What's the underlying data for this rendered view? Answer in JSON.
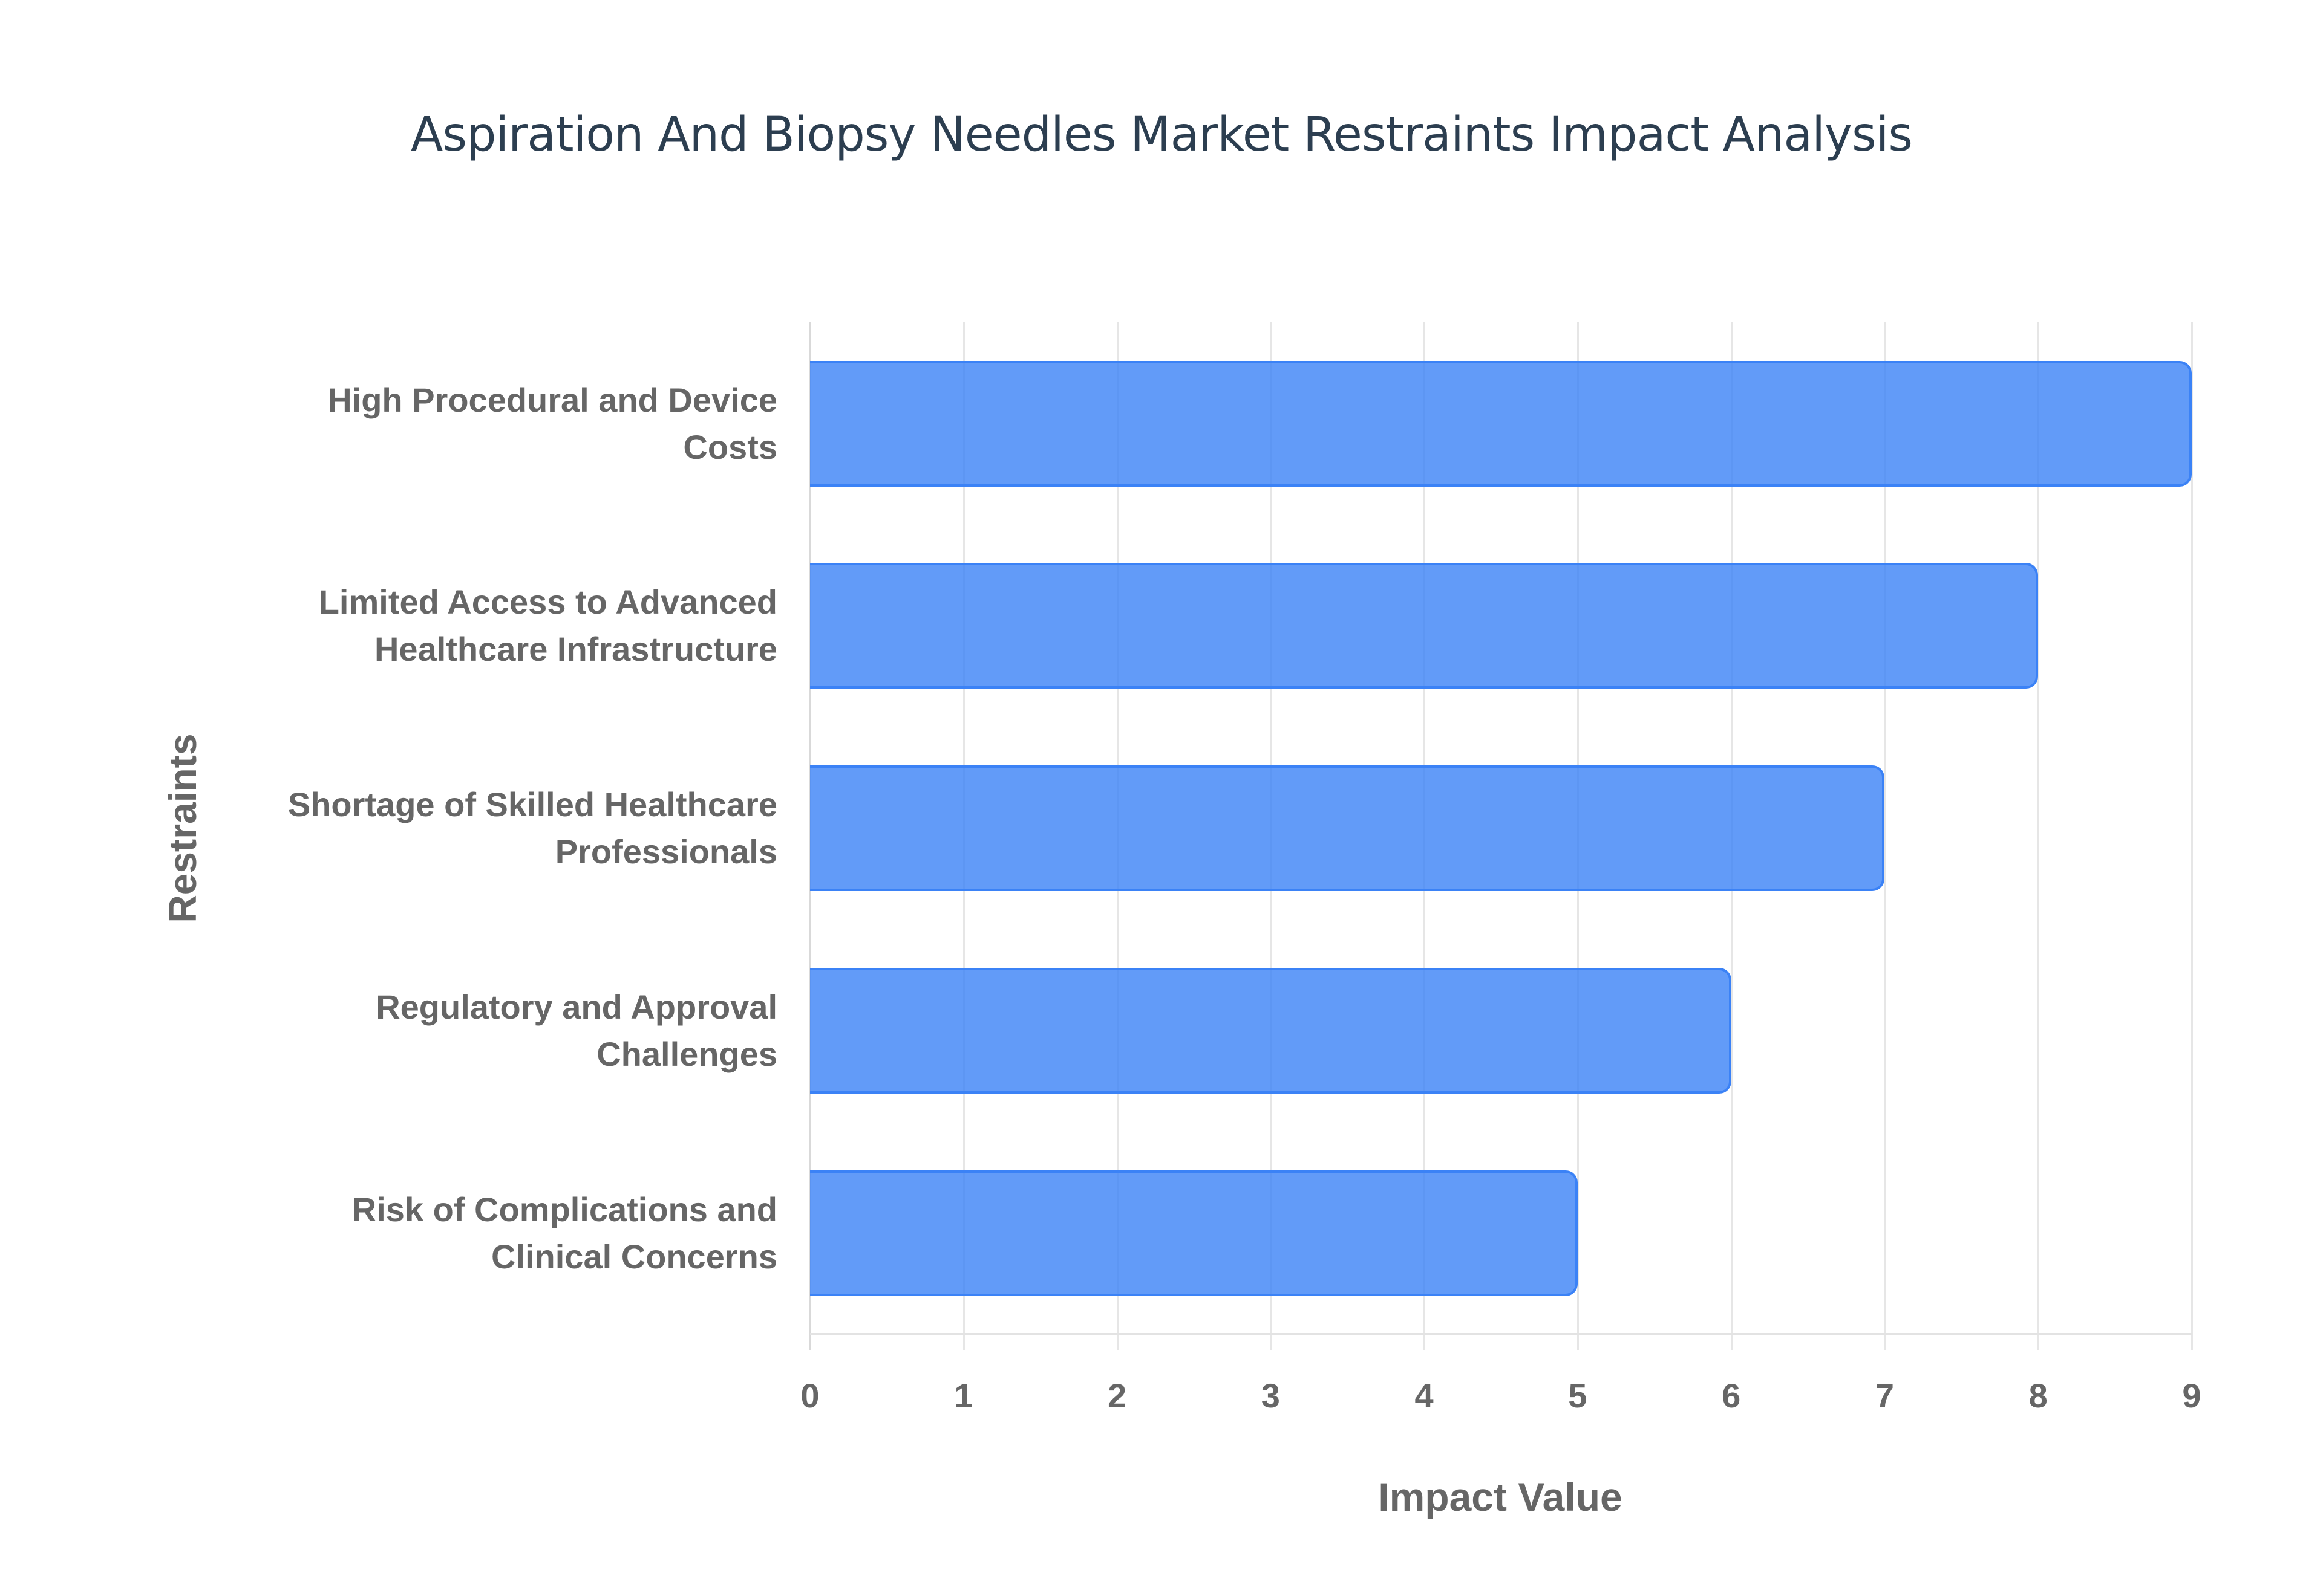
{
  "chart_data": {
    "type": "bar",
    "orientation": "horizontal",
    "title": "Aspiration And Biopsy Needles Market Restraints Impact Analysis",
    "xlabel": "Impact Value",
    "ylabel": "Restraints",
    "categories": [
      "High Procedural and Device Costs",
      "Limited Access to Advanced Healthcare Infrastructure",
      "Shortage of Skilled Healthcare Professionals",
      "Regulatory and Approval Challenges",
      "Risk of Complications and Clinical Concerns"
    ],
    "category_lines": [
      [
        "High Procedural and Device",
        "Costs"
      ],
      [
        "Limited Access to Advanced",
        "Healthcare Infrastructure"
      ],
      [
        "Shortage of Skilled Healthcare",
        "Professionals"
      ],
      [
        "Regulatory and Approval",
        "Challenges"
      ],
      [
        "Risk of Complications and",
        "Clinical Concerns"
      ]
    ],
    "values": [
      9,
      8,
      7,
      6,
      5
    ],
    "xlim": [
      0,
      9
    ],
    "xticks": [
      "0",
      "1",
      "2",
      "3",
      "4",
      "5",
      "6",
      "7",
      "8",
      "9"
    ],
    "grid": true,
    "legend": null,
    "colors": {
      "bar_fill": "#6199f4",
      "bar_border": "#3b82f6",
      "title": "#2c3e50",
      "axis_text": "#666666",
      "grid": "#e6e6e6"
    }
  }
}
